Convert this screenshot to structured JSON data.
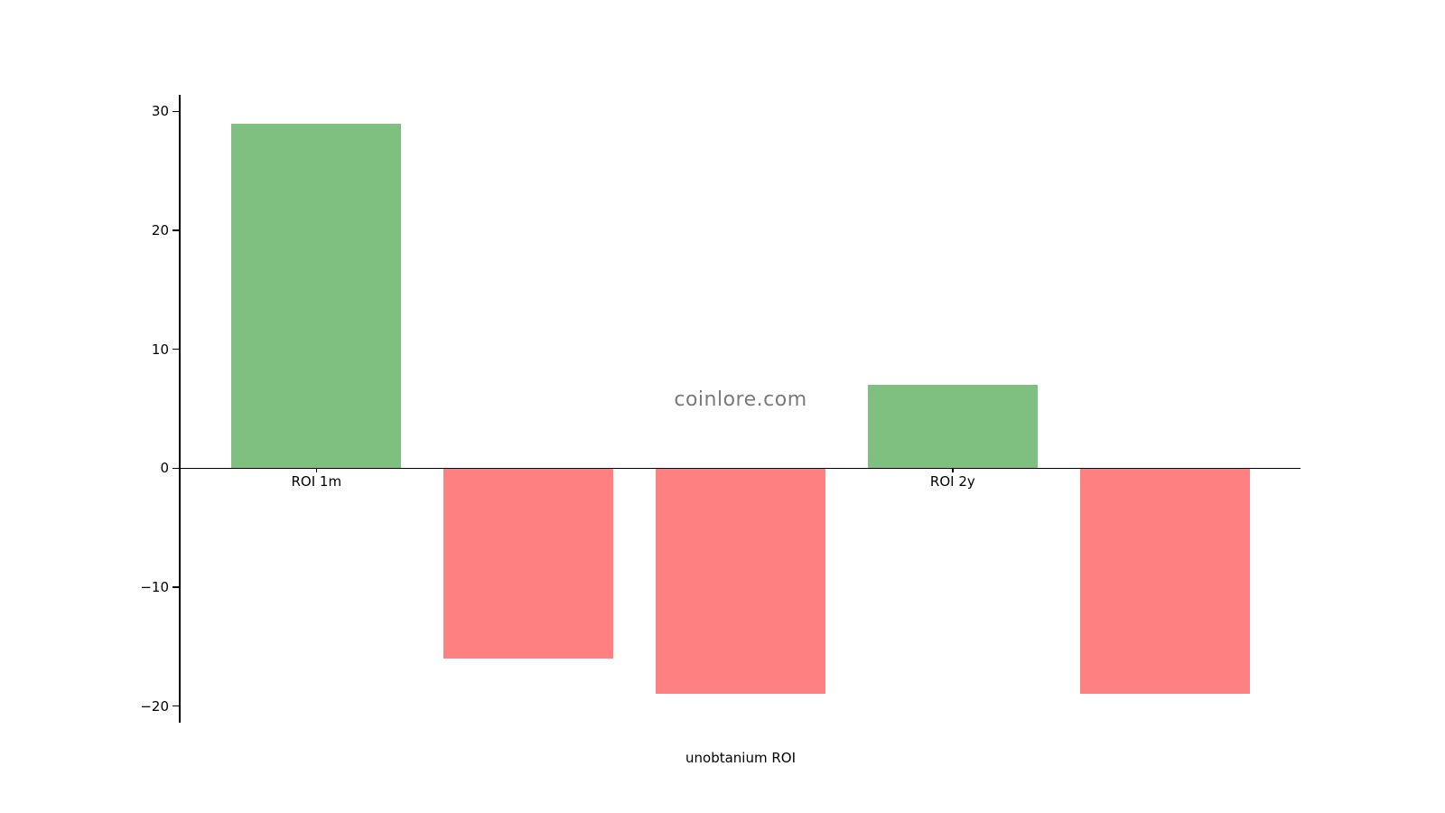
{
  "figure": {
    "watermark": "coinlore.com"
  },
  "chart_data": {
    "type": "bar",
    "title": "",
    "xlabel": "unobtanium ROI",
    "ylabel": "",
    "categories": [
      "ROI 1m",
      "",
      "",
      "ROI 2y",
      ""
    ],
    "values": [
      29,
      -16,
      -19,
      7,
      -19
    ],
    "yticks": [
      30,
      20,
      10,
      0,
      -10,
      -20
    ],
    "ytick_labels": [
      "30",
      "20",
      "10",
      "0",
      "−10",
      "−20"
    ],
    "ylim": [
      -21.4,
      31.4
    ],
    "xlim": [
      -0.64,
      4.64
    ],
    "bar_width_fraction": 0.8,
    "grid": false,
    "legend": "none",
    "colors": {
      "positive_bar": "#7fbf7f",
      "negative_bar": "#ff8080",
      "axis": "#000000",
      "tick_text": "#000000",
      "watermark": "#7a7a7a",
      "background": "#ffffff"
    }
  }
}
